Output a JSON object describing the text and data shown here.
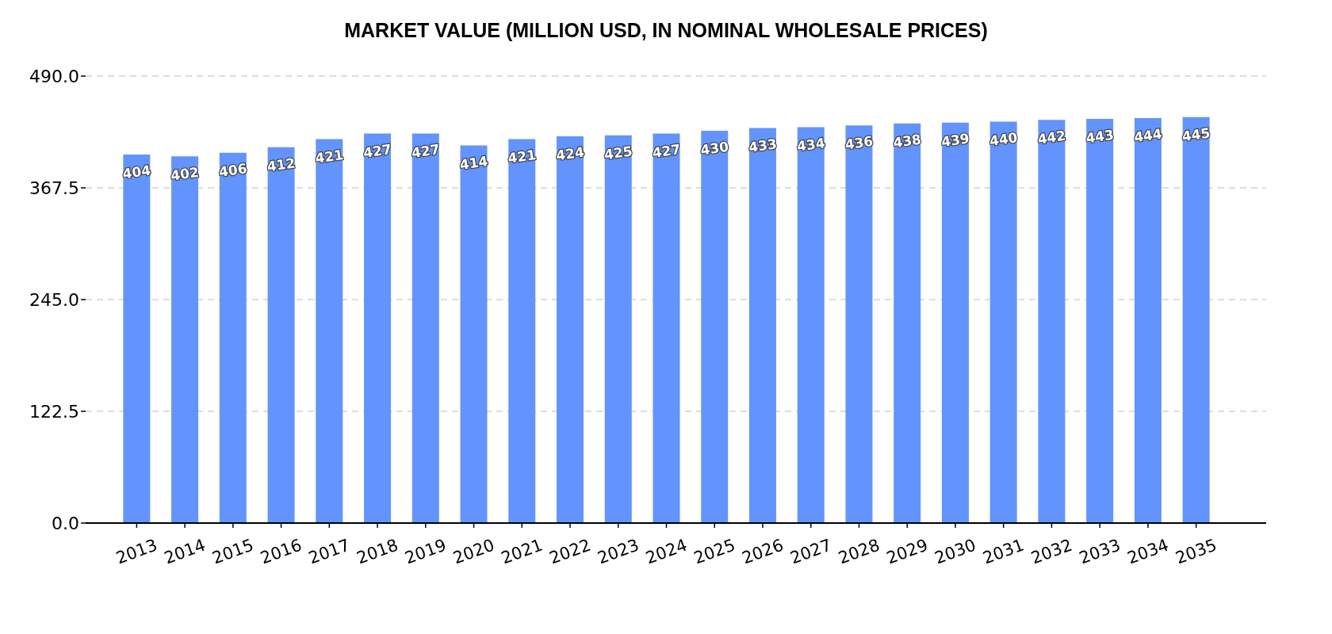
{
  "chart_data": {
    "type": "bar",
    "title": "MARKET VALUE (MILLION USD, IN NOMINAL WHOLESALE PRICES)",
    "categories": [
      "2013",
      "2014",
      "2015",
      "2016",
      "2017",
      "2018",
      "2019",
      "2020",
      "2021",
      "2022",
      "2023",
      "2024",
      "2025",
      "2026",
      "2027",
      "2028",
      "2029",
      "2030",
      "2031",
      "2032",
      "2033",
      "2034",
      "2035"
    ],
    "values": [
      404,
      402,
      406,
      412,
      421,
      427,
      427,
      414,
      421,
      424,
      425,
      427,
      430,
      433,
      434,
      436,
      438,
      439,
      440,
      442,
      443,
      444,
      445
    ],
    "color": "#6394fd",
    "ylim": [
      0,
      490
    ],
    "yticks": [
      {
        "value": 0,
        "label": "0.0"
      },
      {
        "value": 122.5,
        "label": "122.5"
      },
      {
        "value": 245,
        "label": "245.0"
      },
      {
        "value": 367.5,
        "label": "367.5"
      },
      {
        "value": 490,
        "label": "490.0"
      }
    ],
    "grid": "y",
    "data_labels": true
  }
}
